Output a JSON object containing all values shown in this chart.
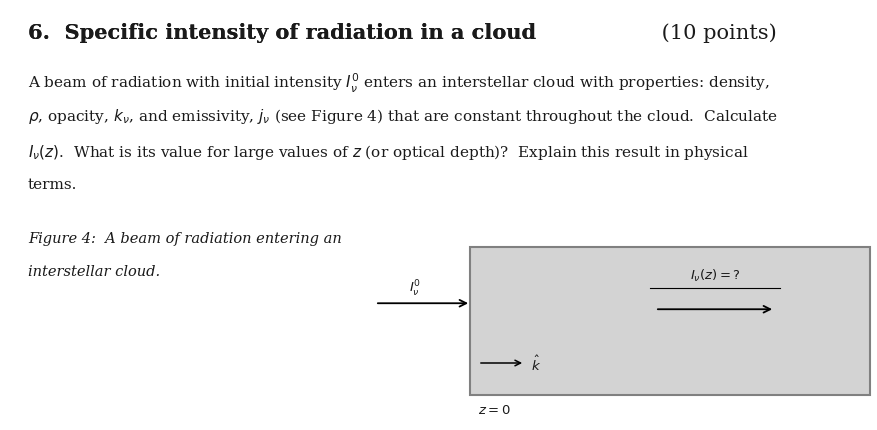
{
  "title_bold": "6.  Specific intensity of radiation in a cloud",
  "title_normal": " (10 points)",
  "body_lines": [
    "A beam of radiation with initial intensity $I_\\nu^0$ enters an interstellar cloud with properties: density,",
    "$\\rho$, opacity, $k_\\nu$, and emissivity, $j_\\nu$ (see Figure 4) that are constant throughout the cloud.  Calculate",
    "$I_\\nu(z)$.  What is its value for large values of $z$ (or optical depth)?  Explain this result in physical",
    "terms."
  ],
  "caption_lines": [
    "Figure 4:  A beam of radiation entering an",
    "interstellar cloud."
  ],
  "label_I0": "$I_\\nu^0$",
  "label_Iz": "$I_\\nu(z) = ?$",
  "label_k": "$\\hat{k}$",
  "label_z0": "$z=0$",
  "bg_color": "#ffffff",
  "cloud_color": "#d3d3d3",
  "cloud_edge_color": "#808080",
  "text_color": "#1a1a1a",
  "fig_w": 8.77,
  "fig_h": 4.31,
  "dpi": 100
}
